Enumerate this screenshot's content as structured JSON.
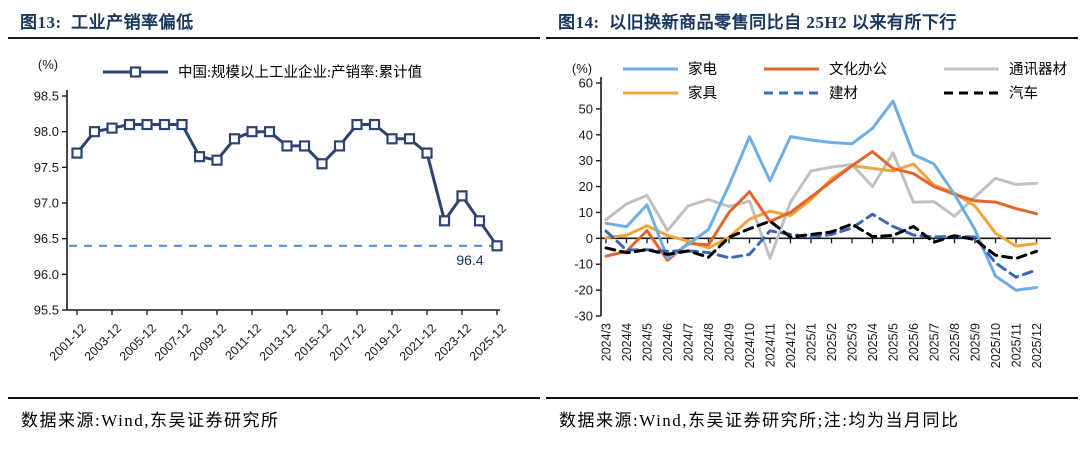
{
  "footnotes": [
    "数据来源:Wind,东吴证券研究所",
    "数据来源:Wind,东吴证券研究所;注:均为当月同比"
  ],
  "chart_data": [
    {
      "type": "line",
      "title": "图13:  工业产销率偏低",
      "ylabel": "(%)",
      "ylim": [
        95.5,
        98.5
      ],
      "ytick_step": 0.5,
      "grid": false,
      "legend_position": "top",
      "categories": [
        "2001-12",
        "2002-12",
        "2003-12",
        "2004-12",
        "2005-12",
        "2006-12",
        "2007-12",
        "2008-12",
        "2009-12",
        "2010-12",
        "2011-12",
        "2012-12",
        "2013-12",
        "2014-12",
        "2015-12",
        "2016-12",
        "2017-12",
        "2018-12",
        "2019-12",
        "2020-12",
        "2021-12",
        "2022-12",
        "2023-12",
        "2024-12",
        "2025-12"
      ],
      "xtick_label_every": 2,
      "series": [
        {
          "name": "中国:规模以上工业企业:产销率:累计值",
          "color": "#2E4470",
          "style": "solid",
          "marker": "square",
          "values": [
            97.7,
            98.0,
            98.05,
            98.1,
            98.1,
            98.1,
            98.1,
            97.65,
            97.6,
            97.9,
            98.0,
            98.0,
            97.8,
            97.8,
            97.55,
            97.8,
            98.1,
            98.1,
            97.9,
            97.9,
            97.7,
            96.75,
            97.1,
            96.75,
            96.4
          ]
        }
      ],
      "ref_line": {
        "value": 96.4,
        "label": "96.4",
        "color": "#4F94D8",
        "style": "dashed"
      }
    },
    {
      "type": "line",
      "title": "图14:  以旧换新商品零售同比自 25H2 以来有所下行",
      "ylabel": "(%)",
      "ylim": [
        -30,
        60
      ],
      "ytick_step": 10,
      "grid": false,
      "legend_position": "top",
      "note": "均为当月同比",
      "categories": [
        "2024/3",
        "2024/4",
        "2024/5",
        "2024/6",
        "2024/7",
        "2024/8",
        "2024/9",
        "2024/10",
        "2024/11",
        "2024/12",
        "2025/1",
        "2025/2",
        "2025/3",
        "2025/4",
        "2025/5",
        "2025/6",
        "2025/7",
        "2025/8",
        "2025/9",
        "2025/10",
        "2025/11",
        "2025/12"
      ],
      "xtick_label_every": 1,
      "series": [
        {
          "name": "家电",
          "color": "#6FAEE3",
          "style": "solid",
          "values": [
            5.8,
            4.5,
            12.9,
            -7.6,
            -2.4,
            3.4,
            20.5,
            39.2,
            22.2,
            39.3,
            38,
            37,
            36.5,
            42.5,
            53,
            32.4,
            28.7,
            17,
            3.3,
            -14.6,
            -20,
            -19
          ]
        },
        {
          "name": "文化办公",
          "color": "#E2662C",
          "style": "solid",
          "values": [
            -6.9,
            -5,
            3,
            -8.5,
            -2,
            -2.5,
            10,
            18,
            6.5,
            10,
            16,
            22,
            28,
            33.5,
            27,
            25,
            20,
            17,
            14.5,
            14,
            11.5,
            9.5
          ]
        },
        {
          "name": "通讯器材",
          "color": "#C0C0C0",
          "style": "solid",
          "values": [
            7.2,
            13.3,
            16.6,
            3,
            12.5,
            15,
            12.3,
            14.4,
            -7.7,
            14,
            26,
            27.5,
            28.5,
            20,
            33,
            13.9,
            14.2,
            8.5,
            16,
            23.2,
            20.8,
            21.3
          ]
        },
        {
          "name": "家具",
          "color": "#F0A43C",
          "style": "solid",
          "values": [
            0.2,
            1.2,
            4.8,
            1.1,
            -1.1,
            -3.7,
            0.4,
            7.4,
            10.5,
            8.8,
            15,
            23,
            28,
            27,
            26,
            28.7,
            20.6,
            17.5,
            12.5,
            2,
            -3,
            -2
          ]
        },
        {
          "name": "建材",
          "color": "#3D68B4",
          "style": "dashed",
          "values": [
            2.8,
            -4.5,
            -4.4,
            -5,
            -4.8,
            -5.5,
            -7.5,
            -6.2,
            2.9,
            1.5,
            0.5,
            1.5,
            4,
            9.3,
            4.6,
            1.3,
            0.5,
            0.8,
            0.5,
            -9.5,
            -15,
            -12.2
          ]
        },
        {
          "name": "汽车",
          "color": "#000000",
          "style": "dashed",
          "values": [
            -3.7,
            -5.6,
            -4.4,
            -6.2,
            -4.9,
            -7.3,
            0.4,
            3.7,
            6.6,
            0.5,
            1.5,
            2.5,
            5.5,
            0.7,
            1.1,
            4.6,
            -1.5,
            1,
            -0.5,
            -6.5,
            -7.8,
            -5
          ]
        }
      ],
      "legend_rows": [
        [
          "家电",
          "文化办公",
          "通讯器材"
        ],
        [
          "家具",
          "建材",
          "汽车"
        ]
      ]
    }
  ]
}
